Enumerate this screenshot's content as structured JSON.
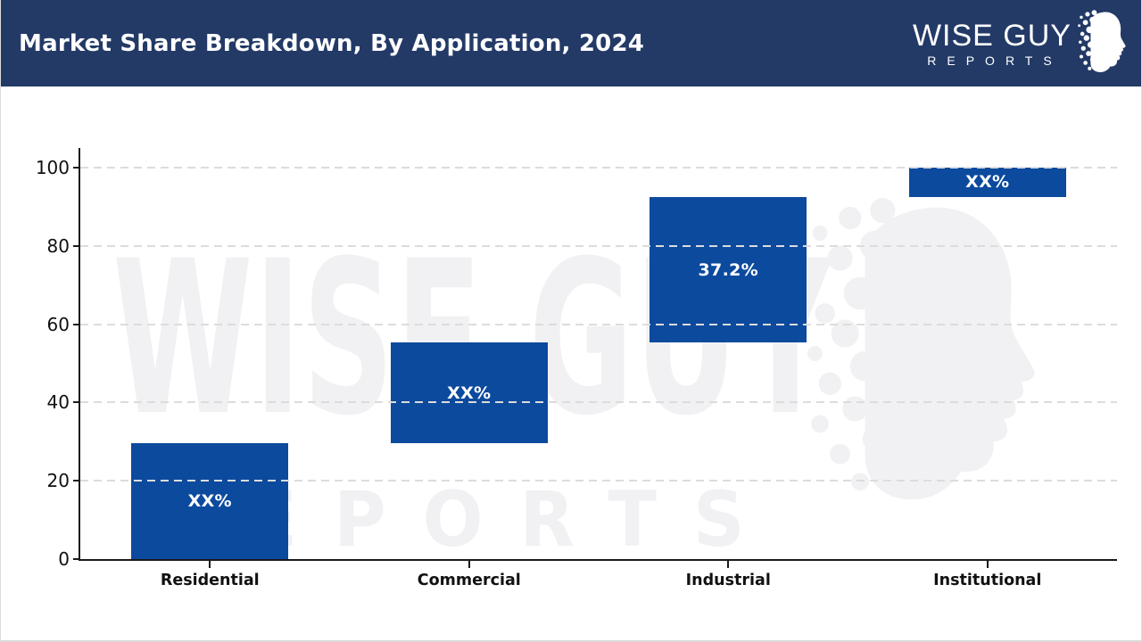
{
  "header": {
    "title": "Market Share Breakdown, By Application, 2024",
    "brand": {
      "line1": "WISE GUY",
      "line2": "REPORTS"
    }
  },
  "watermark": {
    "line1": "WISE GUY",
    "line2": "REPORTS"
  },
  "colors": {
    "header_bg": "#233a67",
    "bar": "#0c4a9e",
    "bar_label": "#ffffff",
    "watermark": "#f1f1f3",
    "grid": "#dcdcdc",
    "axis": "#1a1a1a"
  },
  "chart_data": {
    "type": "bar",
    "subtype": "waterfall",
    "title": "Market Share Breakdown, By Application, 2024",
    "xlabel": "",
    "ylabel": "",
    "categories": [
      "Residential",
      "Commercial",
      "Industrial",
      "Institutional"
    ],
    "segments": [
      {
        "category": "Residential",
        "start": 0,
        "end": 29.5,
        "value": 29.5,
        "label": "XX%"
      },
      {
        "category": "Commercial",
        "start": 29.5,
        "end": 55.3,
        "value": 25.8,
        "label": "XX%"
      },
      {
        "category": "Industrial",
        "start": 55.3,
        "end": 92.5,
        "value": 37.2,
        "label": "37.2%"
      },
      {
        "category": "Institutional",
        "start": 92.5,
        "end": 100,
        "value": 7.5,
        "label": "XX%"
      }
    ],
    "yticks": [
      0,
      20,
      40,
      60,
      80,
      100
    ],
    "ylim": [
      0,
      105
    ],
    "grid": true,
    "grid_style": "dashed",
    "grid_above_bars": true,
    "legend": "none",
    "bar_color": "#0c4a9e",
    "label_color": "#ffffff"
  }
}
